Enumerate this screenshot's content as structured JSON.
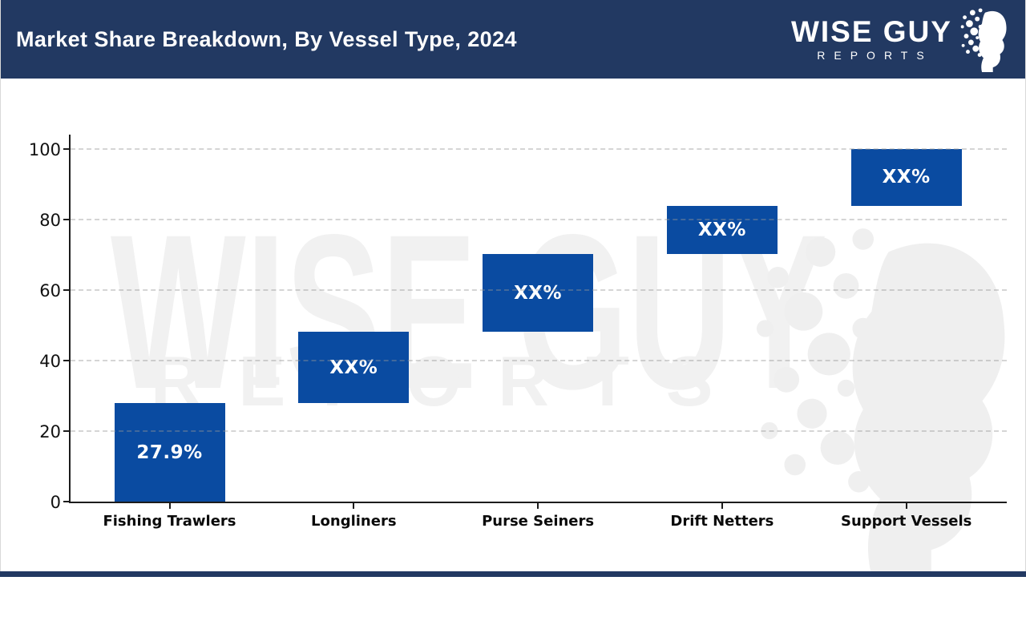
{
  "header": {
    "title": "Market Share Breakdown, By Vessel Type, 2024",
    "brand": {
      "wordmark": "WISE GUY",
      "subtext": "REPORTS"
    }
  },
  "watermark": {
    "line1": "WISE GUY",
    "line2": "REPORTS"
  },
  "colors": {
    "header_bg": "#223962",
    "footer_bg": "#223962",
    "bar": "#0a4ba1",
    "bar_label": "#ffffff",
    "axis": "#1c1c1c",
    "gridline": "#cccccc",
    "watermark": "#f1f1f1"
  },
  "chart_data": {
    "type": "bar",
    "subtype": "floating waterfall-style percentage bars",
    "title": "Market Share Breakdown, By Vessel Type, 2024",
    "categories": [
      "Fishing Trawlers",
      "Longliners",
      "Purse Seiners",
      "Drift Netters",
      "Support Vessels"
    ],
    "bars": [
      {
        "category": "Fishing Trawlers",
        "start": 0,
        "end": 27.9,
        "label": "27.9%"
      },
      {
        "category": "Longliners",
        "start": 27.9,
        "end": 48.1,
        "label": "XX%"
      },
      {
        "category": "Purse Seiners",
        "start": 48.1,
        "end": 70.2,
        "label": "XX%"
      },
      {
        "category": "Drift Netters",
        "start": 70.2,
        "end": 83.9,
        "label": "XX%"
      },
      {
        "category": "Support Vessels",
        "start": 83.9,
        "end": 100,
        "label": "XX%"
      }
    ],
    "xlabel": "",
    "ylabel": "",
    "yticks": [
      0,
      20,
      40,
      60,
      80,
      100
    ],
    "ylim": [
      0,
      104
    ],
    "grid": "horizontal-dashed",
    "legend": "none",
    "bar_color": "#0a4ba1"
  }
}
